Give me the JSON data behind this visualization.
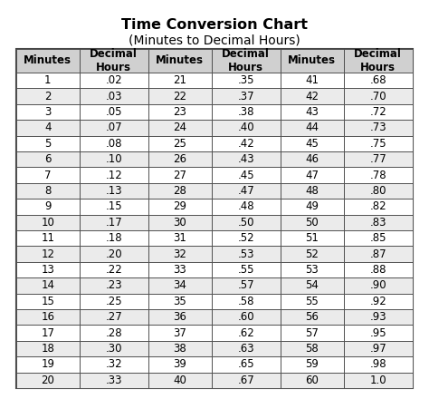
{
  "title": "Time Conversion Chart",
  "subtitle": "(Minutes to Decimal Hours)",
  "col_headers": [
    "Minutes",
    "Decimal\nHours",
    "Minutes",
    "Decimal\nHours",
    "Minutes",
    "Decimal\nHours"
  ],
  "minutes_col1": [
    1,
    2,
    3,
    4,
    5,
    6,
    7,
    8,
    9,
    10,
    11,
    12,
    13,
    14,
    15,
    16,
    17,
    18,
    19,
    20
  ],
  "decimal_col1": [
    ".02",
    ".03",
    ".05",
    ".07",
    ".08",
    ".10",
    ".12",
    ".13",
    ".15",
    ".17",
    ".18",
    ".20",
    ".22",
    ".23",
    ".25",
    ".27",
    ".28",
    ".30",
    ".32",
    ".33"
  ],
  "minutes_col2": [
    21,
    22,
    23,
    24,
    25,
    26,
    27,
    28,
    29,
    30,
    31,
    32,
    33,
    34,
    35,
    36,
    37,
    38,
    39,
    40
  ],
  "decimal_col2": [
    ".35",
    ".37",
    ".38",
    ".40",
    ".42",
    ".43",
    ".45",
    ".47",
    ".48",
    ".50",
    ".52",
    ".53",
    ".55",
    ".57",
    ".58",
    ".60",
    ".62",
    ".63",
    ".65",
    ".67"
  ],
  "minutes_col3": [
    41,
    42,
    43,
    44,
    45,
    46,
    47,
    48,
    49,
    50,
    51,
    52,
    53,
    54,
    55,
    56,
    57,
    58,
    59,
    60
  ],
  "decimal_col3": [
    ".68",
    ".70",
    ".72",
    ".73",
    ".75",
    ".77",
    ".78",
    ".80",
    ".82",
    ".83",
    ".85",
    ".87",
    ".88",
    ".90",
    ".92",
    ".93",
    ".95",
    ".97",
    ".98",
    "1.0"
  ],
  "header_bg": "#d0d0d0",
  "row_bg_even": "#ebebeb",
  "row_bg_odd": "#ffffff",
  "border_color": "#444444",
  "text_color": "#000000",
  "title_fontsize": 11.5,
  "subtitle_fontsize": 10,
  "cell_fontsize": 8.5,
  "header_fontsize": 8.5,
  "fig_width": 4.74,
  "fig_height": 4.4,
  "dpi": 100
}
